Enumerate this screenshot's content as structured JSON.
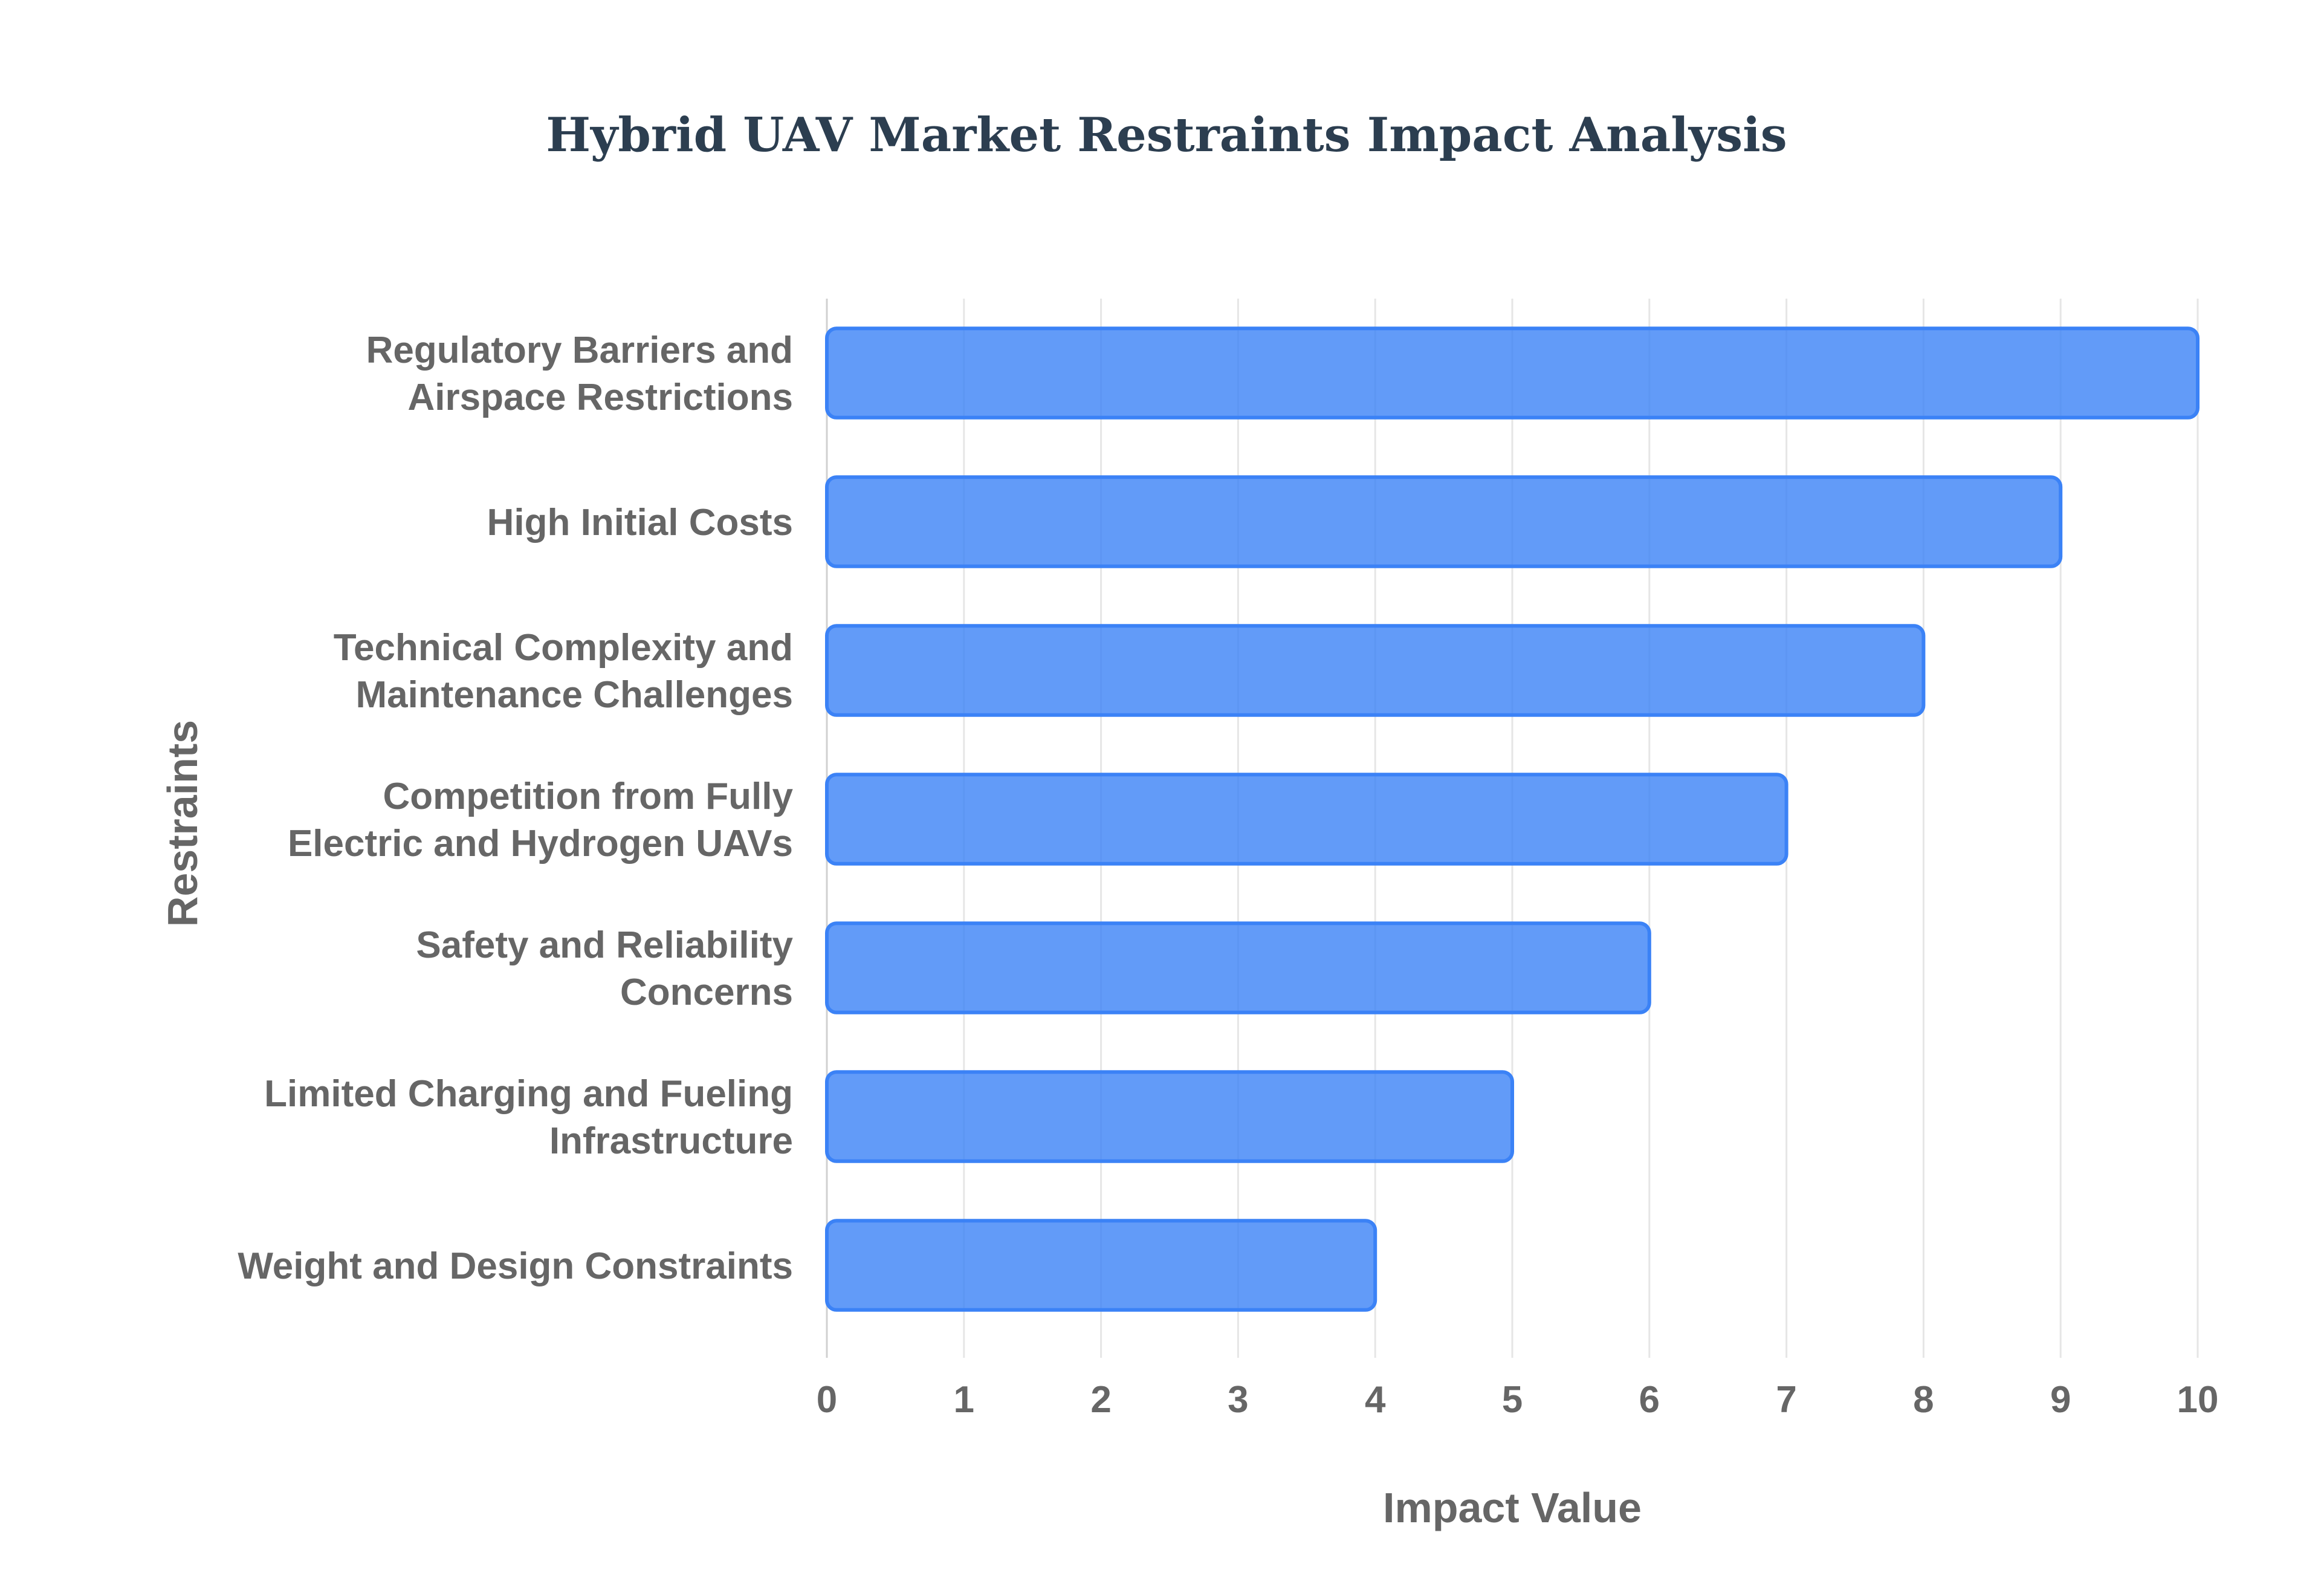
{
  "chart_data": {
    "type": "bar",
    "orientation": "horizontal",
    "title": "Hybrid UAV Market Restraints Impact Analysis",
    "xlabel": "Impact Value",
    "ylabel": "Restraints",
    "xlim": [
      0,
      10
    ],
    "xticks": [
      "0",
      "1",
      "2",
      "3",
      "4",
      "5",
      "6",
      "7",
      "8",
      "9",
      "10"
    ],
    "grid": true,
    "categories": [
      [
        "Regulatory Barriers and",
        "Airspace Restrictions"
      ],
      [
        "High Initial Costs"
      ],
      [
        "Technical Complexity and",
        "Maintenance Challenges"
      ],
      [
        "Competition from Fully",
        "Electric and Hydrogen UAVs"
      ],
      [
        "Safety and Reliability",
        "Concerns"
      ],
      [
        "Limited Charging and Fueling",
        "Infrastructure"
      ],
      [
        "Weight and Design Constraints"
      ]
    ],
    "values": [
      10,
      9,
      8,
      7,
      6,
      5,
      4
    ],
    "colors": {
      "bar_fill": "rgba(59, 130, 246, 0.8)",
      "bar_border": "#3b82f6",
      "title": "#2c3e50",
      "labels": "#666666"
    }
  }
}
